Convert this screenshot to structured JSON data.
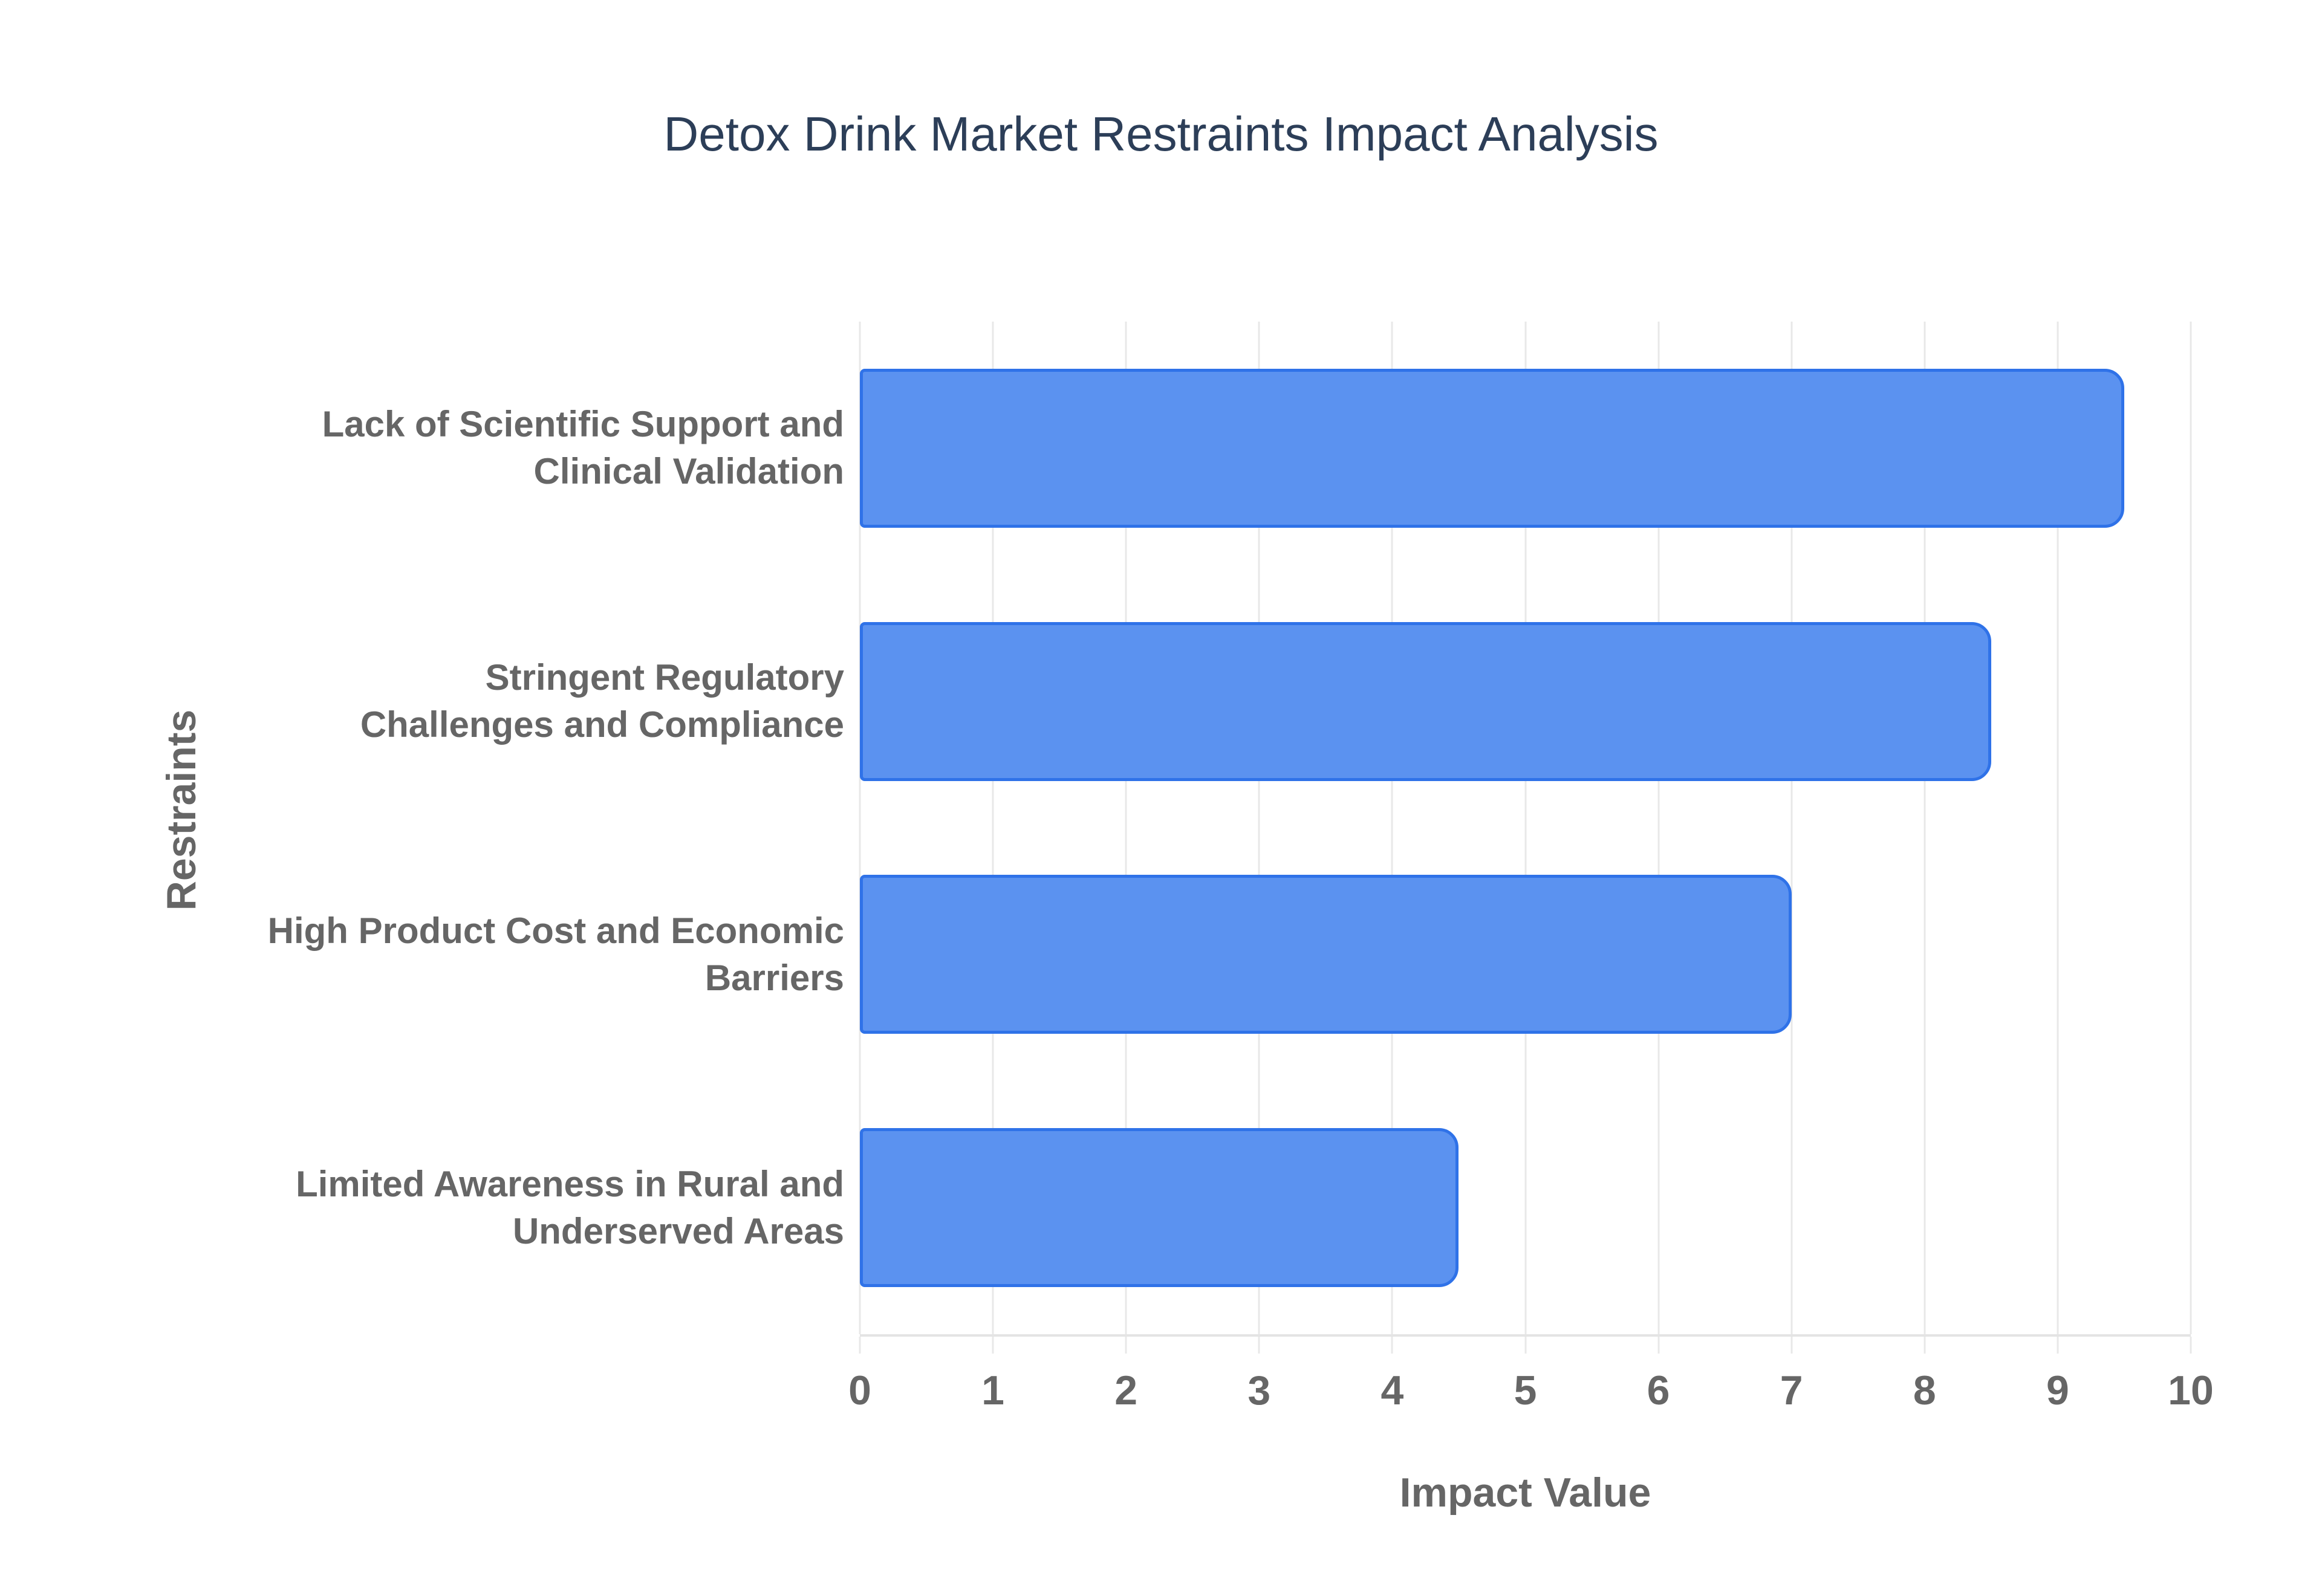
{
  "colors": {
    "bar_fill": "#5b92f0",
    "bar_stroke": "#2f72e8",
    "grid": "#e8e8e8",
    "axis_line": "#e4e4e4",
    "text_gray": "#666666",
    "title_color": "#2c3e58",
    "background": "#ffffff"
  },
  "chart_data": {
    "type": "bar",
    "orientation": "horizontal",
    "title": "Detox Drink Market Restraints Impact Analysis",
    "xlabel": "Impact Value",
    "ylabel": "Restraints",
    "xlim": [
      0,
      10
    ],
    "xticks": [
      0,
      1,
      2,
      3,
      4,
      5,
      6,
      7,
      8,
      9,
      10
    ],
    "grid": "vertical-only",
    "legend": "none",
    "categories": [
      "Lack of Scientific Support and Clinical Validation",
      "Stringent Regulatory Challenges and Compliance",
      "High Product Cost and Economic Barriers",
      "Limited Awareness in Rural and Underserved Areas"
    ],
    "category_lines": [
      [
        "Lack of Scientific Support and",
        "Clinical Validation"
      ],
      [
        "Stringent Regulatory",
        "Challenges and Compliance"
      ],
      [
        "High Product Cost and Economic",
        "Barriers"
      ],
      [
        "Limited Awareness in Rural and",
        "Underserved Areas"
      ]
    ],
    "values": [
      9.5,
      8.5,
      7,
      4.5
    ]
  }
}
